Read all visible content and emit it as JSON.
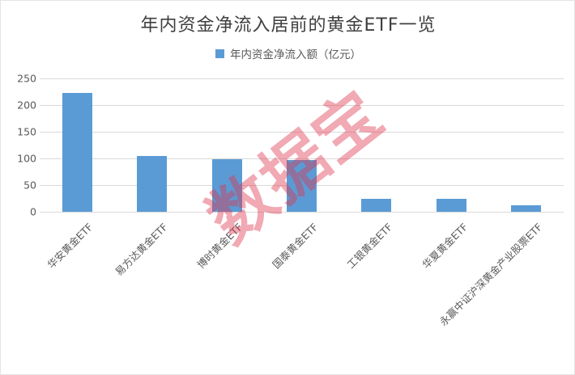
{
  "title": "年内资金净流入居前的黄金ETF一览",
  "watermark": {
    "text": "数据宝",
    "color": "#e0344c"
  },
  "colors": {
    "bar": "#5b9bd5",
    "grid": "#d9d9d9",
    "axis_text": "#595959",
    "title_text": "#3f3f3f"
  },
  "chart_data": {
    "type": "bar",
    "title": "年内资金净流入居前的黄金ETF一览",
    "legend_label": "年内资金净流入额（亿元）",
    "legend_position": "top",
    "categories": [
      "华安黄金ETF",
      "易方达黄金ETF",
      "博时黄金ETF",
      "国泰黄金ETF",
      "工银黄金ETF",
      "华夏黄金ETF",
      "永赢中证沪深黄金产业股票ETF"
    ],
    "values": [
      222,
      104,
      99,
      97,
      24,
      24,
      12
    ],
    "xlabel": "",
    "ylabel": "",
    "ylim": [
      0,
      250
    ],
    "yticks": [
      0,
      50,
      100,
      150,
      200,
      250
    ],
    "grid": true,
    "bar_color": "#5b9bd5"
  }
}
